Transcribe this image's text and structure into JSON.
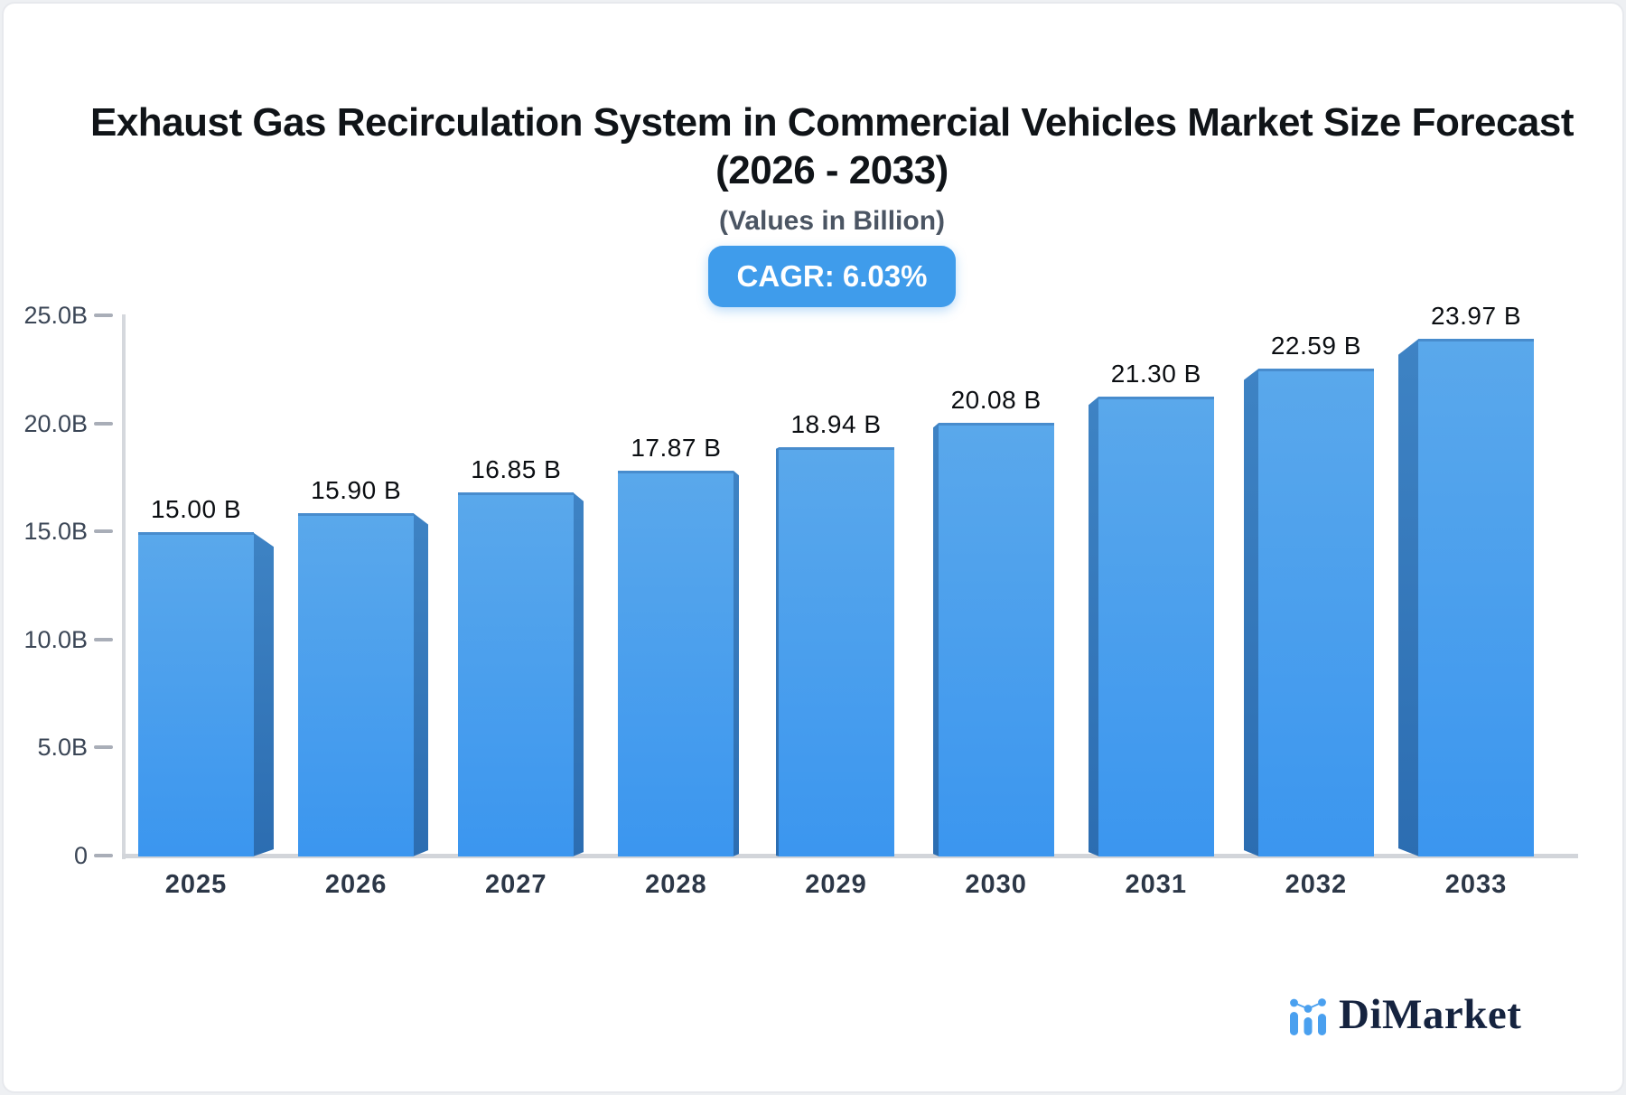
{
  "header": {
    "title_line1": "Exhaust Gas Recirculation System in Commercial Vehicles Market Size Forecast",
    "title_line2": "(2026 - 2033)",
    "subtitle": "(Values in Billion)",
    "cagr_label": "CAGR: 6.03%"
  },
  "chart_data": {
    "type": "bar",
    "title": "Exhaust Gas Recirculation System in Commercial Vehicles Market Size Forecast (2026 - 2033)",
    "subtitle": "Values in Billion",
    "cagr_percent": 6.03,
    "categories": [
      "2025",
      "2026",
      "2027",
      "2028",
      "2029",
      "2030",
      "2031",
      "2032",
      "2033"
    ],
    "values": [
      15.0,
      15.9,
      16.85,
      17.87,
      18.94,
      20.08,
      21.3,
      22.59,
      23.97
    ],
    "bar_labels": [
      "15.00 B",
      "15.90 B",
      "16.85 B",
      "17.87 B",
      "18.94 B",
      "20.08 B",
      "21.30 B",
      "22.59 B",
      "23.97 B"
    ],
    "xlabel": "",
    "ylabel": "",
    "ylim": [
      0,
      25
    ],
    "y_ticks": [
      {
        "value": 25,
        "label": "25.0B"
      },
      {
        "value": 20,
        "label": "20.0B"
      },
      {
        "value": 15,
        "label": "15.0B"
      },
      {
        "value": 10,
        "label": "10.0B"
      },
      {
        "value": 5,
        "label": "5.0B"
      },
      {
        "value": 0,
        "label": "0"
      }
    ],
    "grid": false,
    "legend": false,
    "style": "3d-perspective-columns"
  },
  "colors": {
    "accent": "#3f9ceb",
    "badge_text": "#ffffff",
    "bar_top": "#5aa8eb",
    "bar_bottom": "#3b96ef",
    "bar_side": "#2f73b5",
    "axis_line": "#d5d8dd",
    "tick_text": "#3b4656",
    "category_text": "#2c3747",
    "value_text": "#0b0e12",
    "title_text": "#101418",
    "subtitle_text": "#4b5563",
    "brand_text": "#15233f",
    "brand_blue": "#4aa0ef"
  },
  "footer": {
    "brand": "DiMarket",
    "logo_icon": "mini-bar-chart-icon"
  }
}
